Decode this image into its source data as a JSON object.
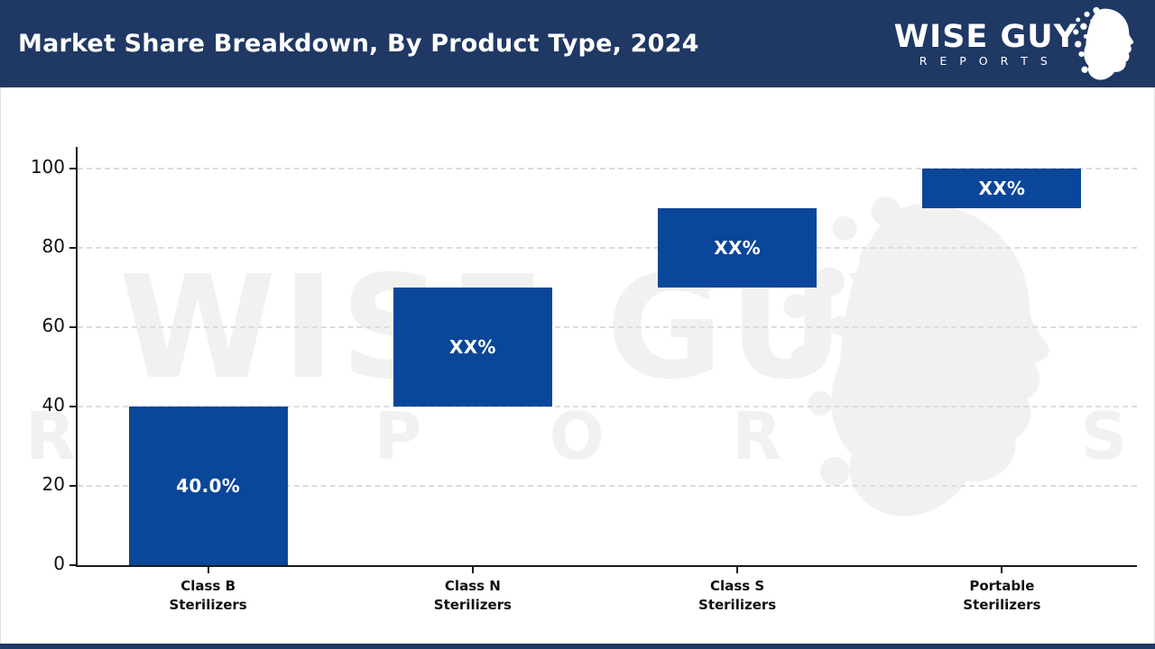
{
  "header": {
    "title": "Market Share Breakdown, By Product Type, 2024",
    "logo_line1": "WISE GUY",
    "logo_line2": "R E P O R T S"
  },
  "watermark": {
    "line1": "WISE GUY",
    "line2": "R E P O R T S"
  },
  "chart_data": {
    "type": "bar",
    "subtype": "waterfall",
    "title": "Market Share Breakdown, By Product Type, 2024",
    "categories": [
      "Class B Sterilizers",
      "Class N Sterilizers",
      "Class S Sterilizers",
      "Portable Sterilizers"
    ],
    "category_lines": [
      [
        "Class B",
        "Sterilizers"
      ],
      [
        "Class N",
        "Sterilizers"
      ],
      [
        "Class S",
        "Sterilizers"
      ],
      [
        "Portable",
        "Sterilizers"
      ]
    ],
    "bars": [
      {
        "category": "Class B Sterilizers",
        "start": 0,
        "end": 40,
        "label": "40.0%"
      },
      {
        "category": "Class N Sterilizers",
        "start": 40,
        "end": 70,
        "label": "XX%"
      },
      {
        "category": "Class S Sterilizers",
        "start": 70,
        "end": 90,
        "label": "XX%"
      },
      {
        "category": "Portable Sterilizers",
        "start": 90,
        "end": 100,
        "label": "XX%"
      }
    ],
    "ylim": [
      0,
      100
    ],
    "yticks": [
      0,
      20,
      40,
      60,
      80,
      100
    ],
    "xlabel": "",
    "ylabel": "",
    "grid": "horizontal-dashed",
    "legend": "none",
    "colors": {
      "bar": "#0a4699",
      "header_bg": "#1f3864",
      "footer_bg": "#1f3864",
      "grid": "#dcdcdc",
      "axis": "#1a1a1a",
      "bar_label": "#ffffff",
      "watermark": "#f1f1f1"
    }
  }
}
